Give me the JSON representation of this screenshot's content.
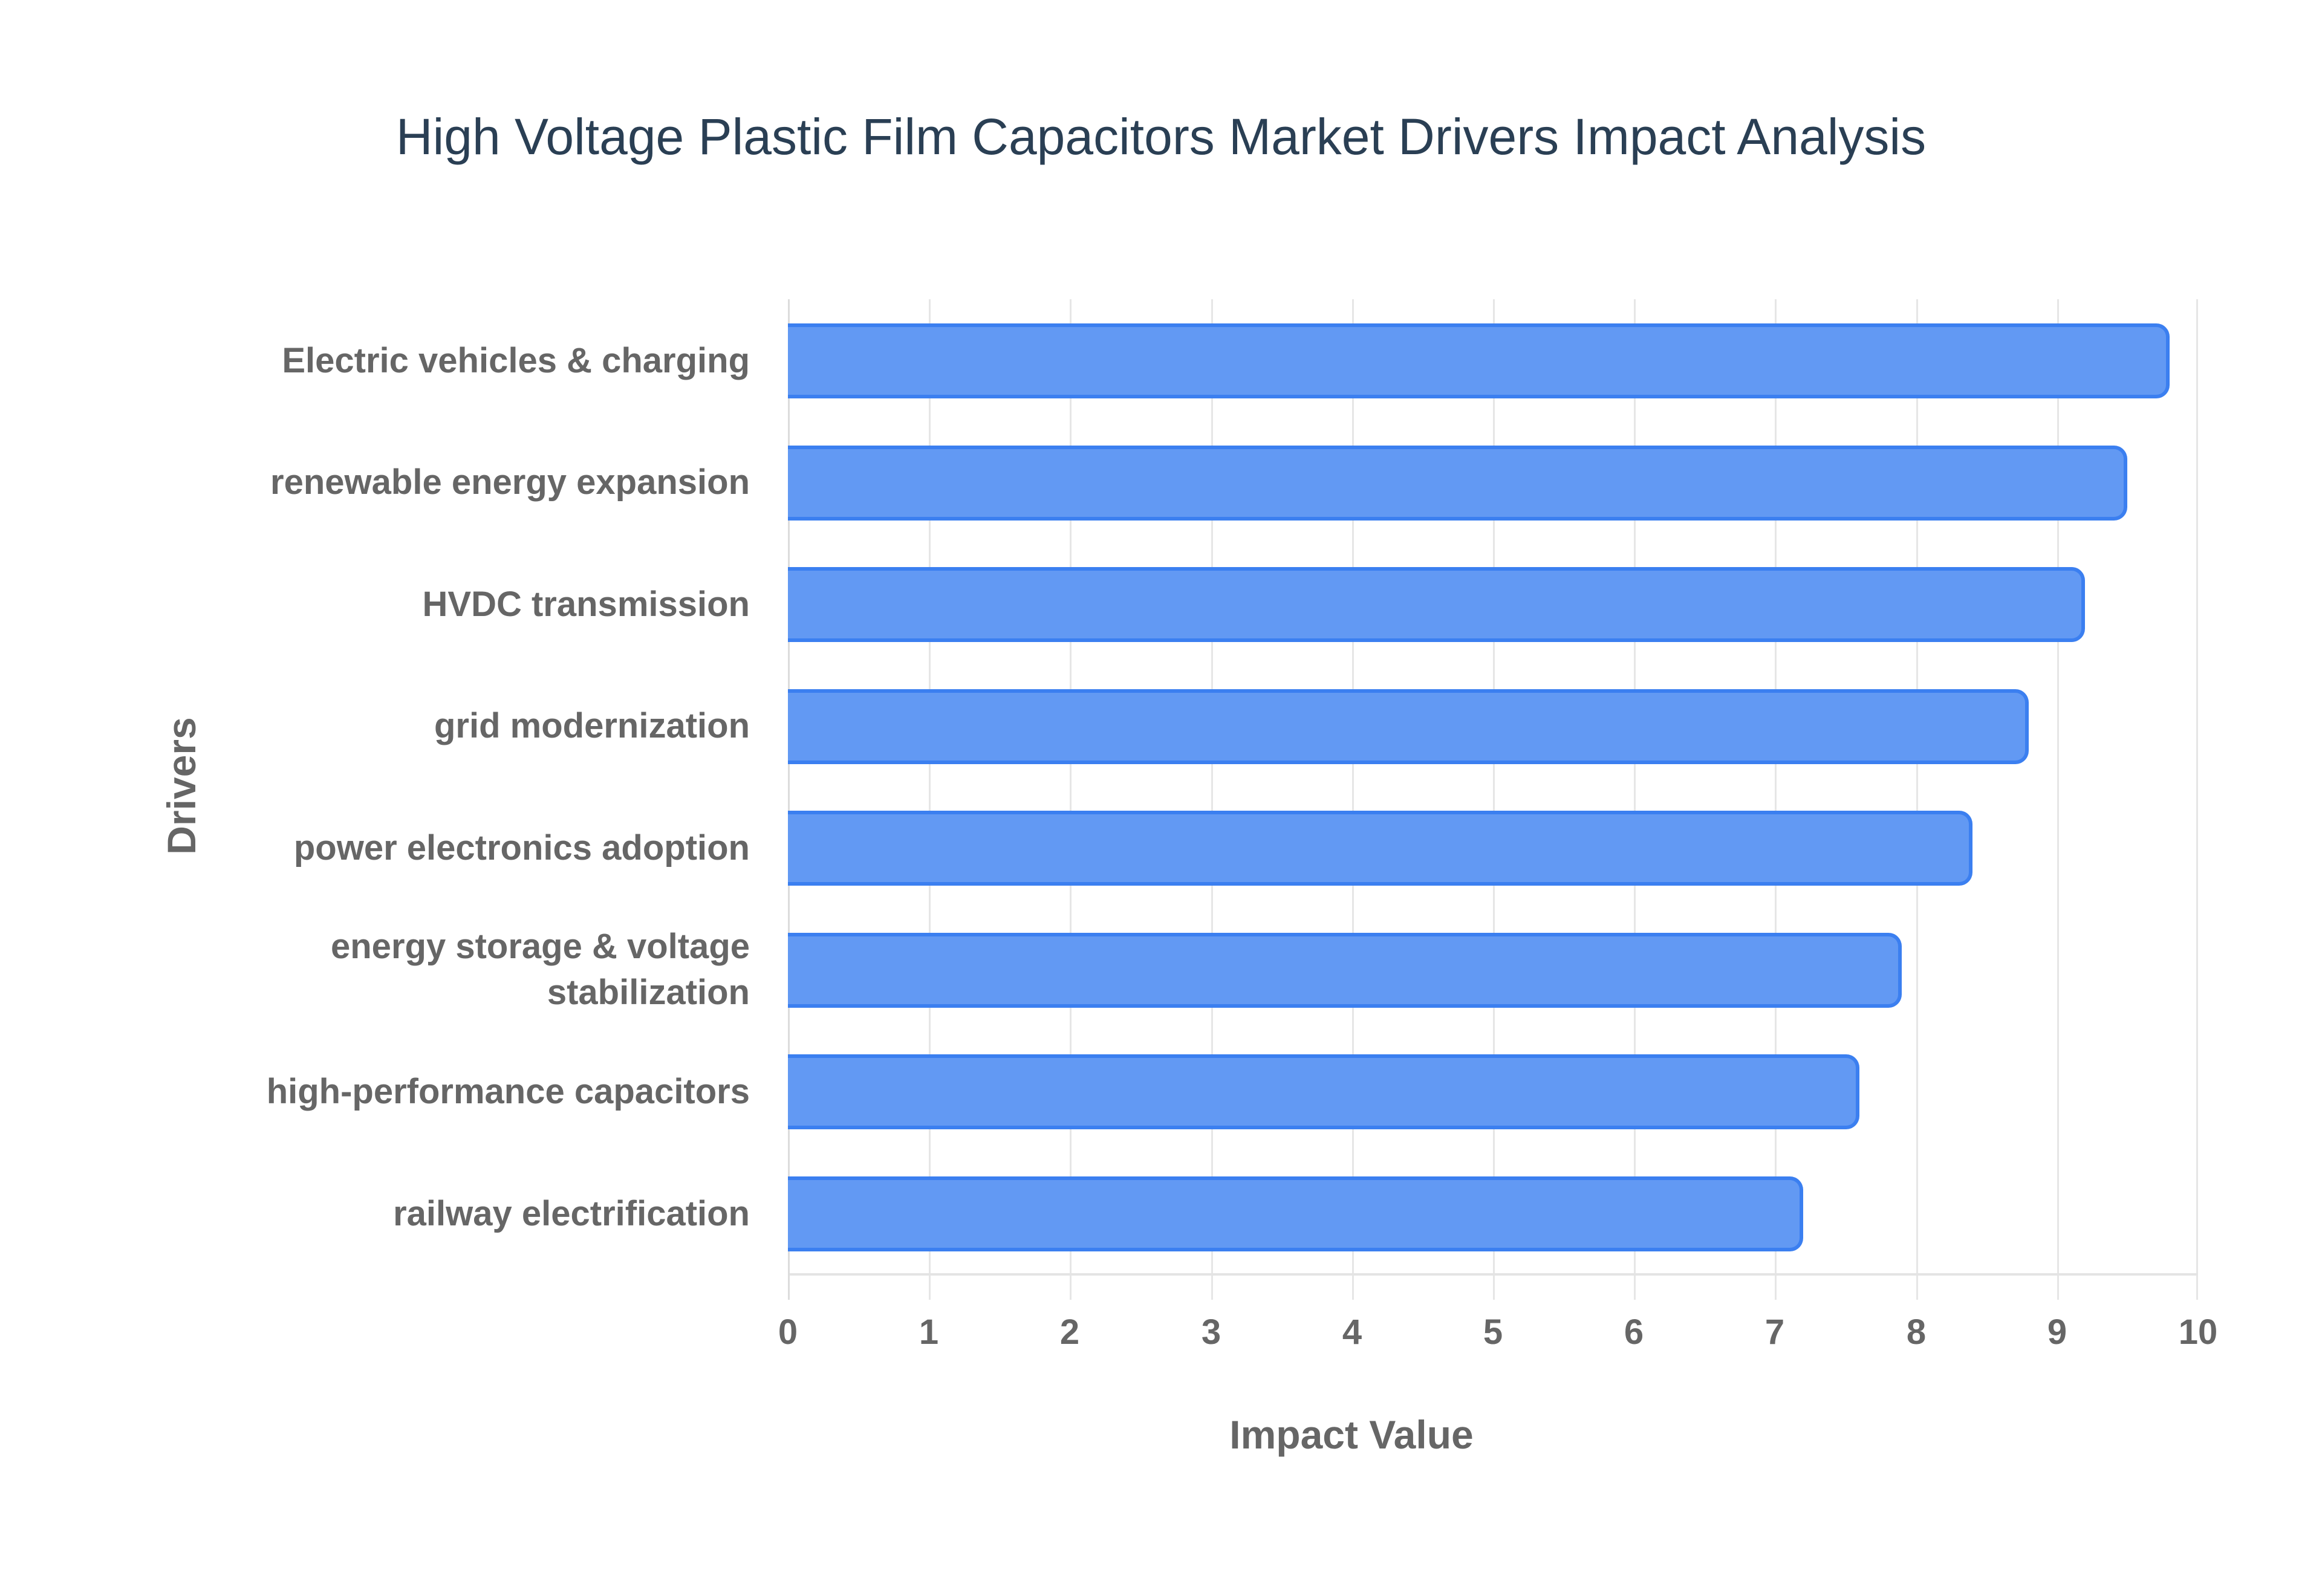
{
  "title": "High Voltage Plastic Film Capacitors Market Drivers Impact Analysis",
  "colors": {
    "bar_fill": "#6299f3",
    "bar_border": "#3b7ff0",
    "title": "#2a3f54",
    "axis_text": "#666666",
    "grid": "#e6e6e6"
  },
  "chart_data": {
    "type": "bar",
    "orientation": "horizontal",
    "title": "High Voltage Plastic Film Capacitors Market Drivers Impact Analysis",
    "xlabel": "Impact Value",
    "ylabel": "Drivers",
    "xlim": [
      0,
      10
    ],
    "x_ticks": [
      "0",
      "1",
      "2",
      "3",
      "4",
      "5",
      "6",
      "7",
      "8",
      "9",
      "10"
    ],
    "grid": true,
    "legend": false,
    "categories": [
      "Electric vehicles & charging",
      "renewable energy expansion",
      "HVDC transmission",
      "grid modernization",
      "power electronics adoption",
      "energy storage & voltage stabilization",
      "high-performance capacitors",
      "railway electrification"
    ],
    "values": [
      9.8,
      9.5,
      9.2,
      8.8,
      8.4,
      7.9,
      7.6,
      7.2
    ]
  },
  "labels": {
    "l0": "Electric vehicles & charging",
    "l1": "renewable energy expansion",
    "l2": "HVDC transmission",
    "l3": "grid modernization",
    "l4": "power electronics adoption",
    "l5a": "energy storage & voltage",
    "l5b": "stabilization",
    "l6": "high-performance capacitors",
    "l7": "railway electrification"
  }
}
